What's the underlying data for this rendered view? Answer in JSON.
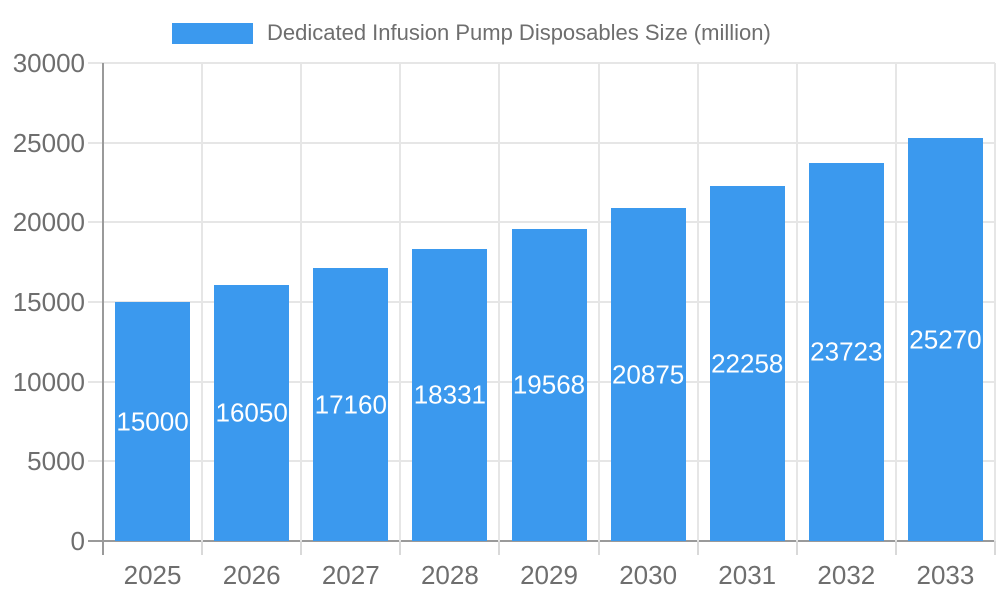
{
  "chart_data": {
    "type": "bar",
    "title": "",
    "legend": {
      "label": "Dedicated Infusion Pump Disposables Size (million)",
      "position": "top"
    },
    "categories": [
      "2025",
      "2026",
      "2027",
      "2028",
      "2029",
      "2030",
      "2031",
      "2032",
      "2033"
    ],
    "series": [
      {
        "name": "Dedicated Infusion Pump Disposables Size (million)",
        "values": [
          15000,
          16050,
          17160,
          18331,
          19568,
          20875,
          22258,
          23723,
          25270
        ]
      }
    ],
    "value_labels_shown": true,
    "xlabel": "",
    "ylabel": "",
    "ylim": [
      0,
      30000
    ],
    "yticks": [
      0,
      5000,
      10000,
      15000,
      20000,
      25000,
      30000
    ],
    "grid": true,
    "colors": {
      "bar": "#3B99EE",
      "grid": "#E6E6E6",
      "axis": "#9A9A9A",
      "tick": "#D9D9D9",
      "label": "#6E6E6E",
      "value_label": "#FFFFFF",
      "background": "#FFFFFF"
    }
  }
}
